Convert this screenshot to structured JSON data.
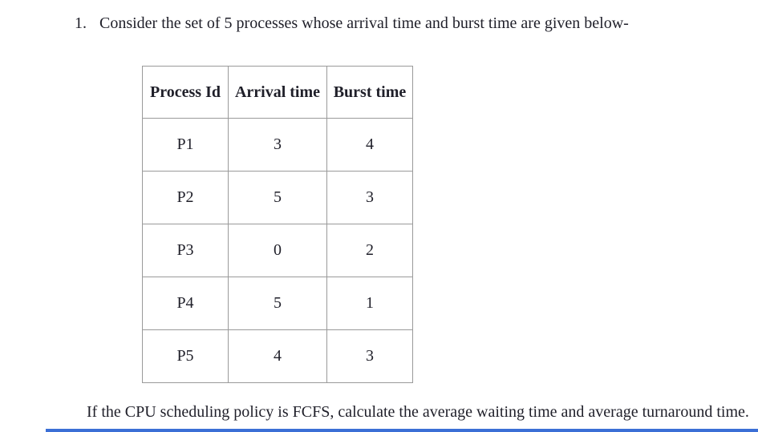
{
  "page": {
    "background_color": "#ffffff",
    "text_color": "#1f1f29",
    "table_border_color": "#9a9a9a",
    "accent_bar_color": "#3b6fd6"
  },
  "question": {
    "number": "1.",
    "text": "Consider the set of 5 processes whose arrival time and burst time are given below-"
  },
  "table": {
    "headers": [
      "Process Id",
      "Arrival time",
      "Burst time"
    ],
    "rows": [
      {
        "process_id": "P1",
        "arrival_time": "3",
        "burst_time": "4"
      },
      {
        "process_id": "P2",
        "arrival_time": "5",
        "burst_time": "3"
      },
      {
        "process_id": "P3",
        "arrival_time": "0",
        "burst_time": "2"
      },
      {
        "process_id": "P4",
        "arrival_time": "5",
        "burst_time": "1"
      },
      {
        "process_id": "P5",
        "arrival_time": "4",
        "burst_time": "3"
      }
    ]
  },
  "footer_question": {
    "text": "If the CPU scheduling policy is FCFS, calculate the average waiting time and average turnaround time."
  }
}
